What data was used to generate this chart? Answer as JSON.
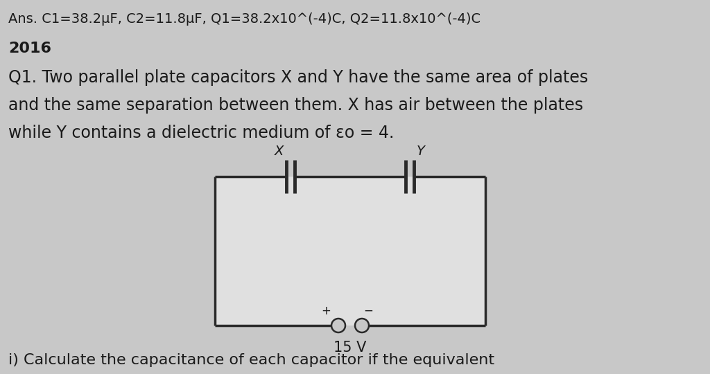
{
  "background_color": "#c8c8c8",
  "circuit_bg": "#e8e8e8",
  "ans_text": "Ans. C1=38.2μF, C2=11.8μF, Q1=38.2x10^(-4)C, Q2=11.8x10^(-4)C",
  "year_text": "2016",
  "q_line1": "Q1. Two parallel plate capacitors X and Y have the same area of plates",
  "q_line2": "and the same separation between them. X has air between the plates",
  "q_line3": "while Y contains a dielectric medium of εo = 4.",
  "bottom_text": "i) Calculate the capacitance of each capacitor if the equivalent",
  "text_color": "#1a1a1a",
  "line_color": "#2a2a2a",
  "font_size_ans": 14,
  "font_size_year": 16,
  "font_size_q": 17,
  "font_size_bottom": 16
}
